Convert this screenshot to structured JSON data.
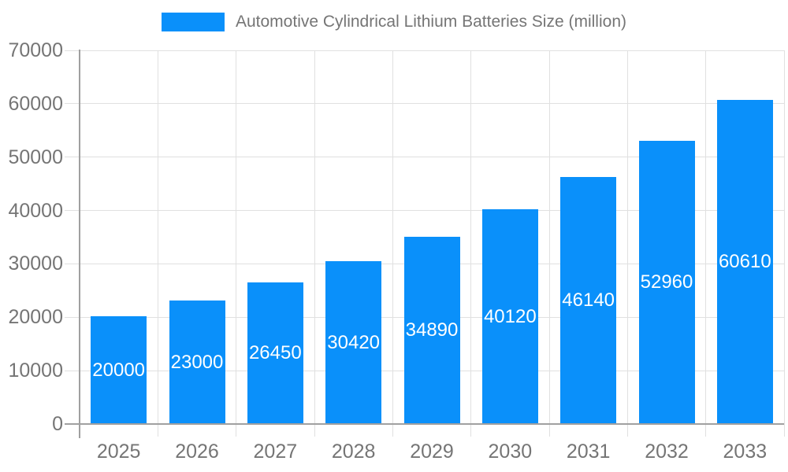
{
  "chart_data": {
    "type": "bar",
    "title": "Automotive Cylindrical Lithium Batteries Size (million)",
    "legend_position": "top",
    "categories": [
      "2025",
      "2026",
      "2027",
      "2028",
      "2029",
      "2030",
      "2031",
      "2032",
      "2033"
    ],
    "series": [
      {
        "name": "Automotive Cylindrical Lithium Batteries Size (million)",
        "values": [
          20000,
          23000,
          26450,
          30420,
          34890,
          40120,
          46140,
          52960,
          60610
        ],
        "color": "#0a90fa"
      }
    ],
    "value_labels": "inside-center",
    "xlabel": "",
    "ylabel": "",
    "ylim": [
      0,
      70000
    ],
    "yticks": [
      0,
      10000,
      20000,
      30000,
      40000,
      50000,
      60000,
      70000
    ],
    "grid": true,
    "colors": {
      "bar": "#0a90fa",
      "bar_value_text": "#ffffff",
      "axis_text": "#757575",
      "legend_text": "#757575",
      "gridline": "#e0e0e0",
      "axis_line": "#a0a0a0",
      "background": "#ffffff"
    }
  }
}
